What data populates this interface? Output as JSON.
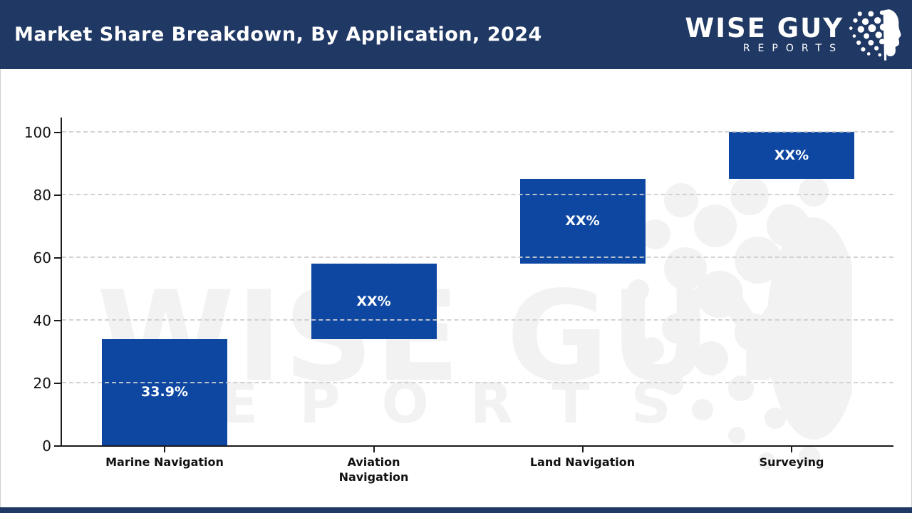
{
  "header": {
    "title": "Market Share Breakdown, By Application, 2024",
    "logo": {
      "line1": "WISE GUY",
      "line2": "REPORTS"
    }
  },
  "watermark": {
    "line1": "WISE GUY",
    "line2": "REPORTS"
  },
  "colors": {
    "header_bg": "#1f3864",
    "footer_bg": "#1f3864",
    "bar": "#0d47a1",
    "grid": "#cdcdcd",
    "watermark": "#f2f2f2",
    "axis": "#1a1a1a"
  },
  "chart_data": {
    "type": "waterfall",
    "title": "Market Share Breakdown, By Application, 2024",
    "categories": [
      "Marine Navigation",
      "Aviation\nNavigation",
      "Land Navigation",
      "Surveying"
    ],
    "segments": [
      {
        "name": "Marine Navigation",
        "start": 0,
        "end": 33.9,
        "value_label": "33.9%"
      },
      {
        "name": "Aviation Navigation",
        "start": 33.9,
        "end": 58,
        "value_label": "XX%"
      },
      {
        "name": "Land Navigation",
        "start": 58,
        "end": 85,
        "value_label": "XX%"
      },
      {
        "name": "Surveying",
        "start": 85,
        "end": 100,
        "value_label": "XX%"
      }
    ],
    "ylim": [
      0,
      100
    ],
    "yticks": [
      "0",
      "20",
      "40",
      "60",
      "80",
      "100"
    ],
    "grid": "horizontal dashed",
    "legend": "none",
    "bar_color": "#0d47a1"
  }
}
